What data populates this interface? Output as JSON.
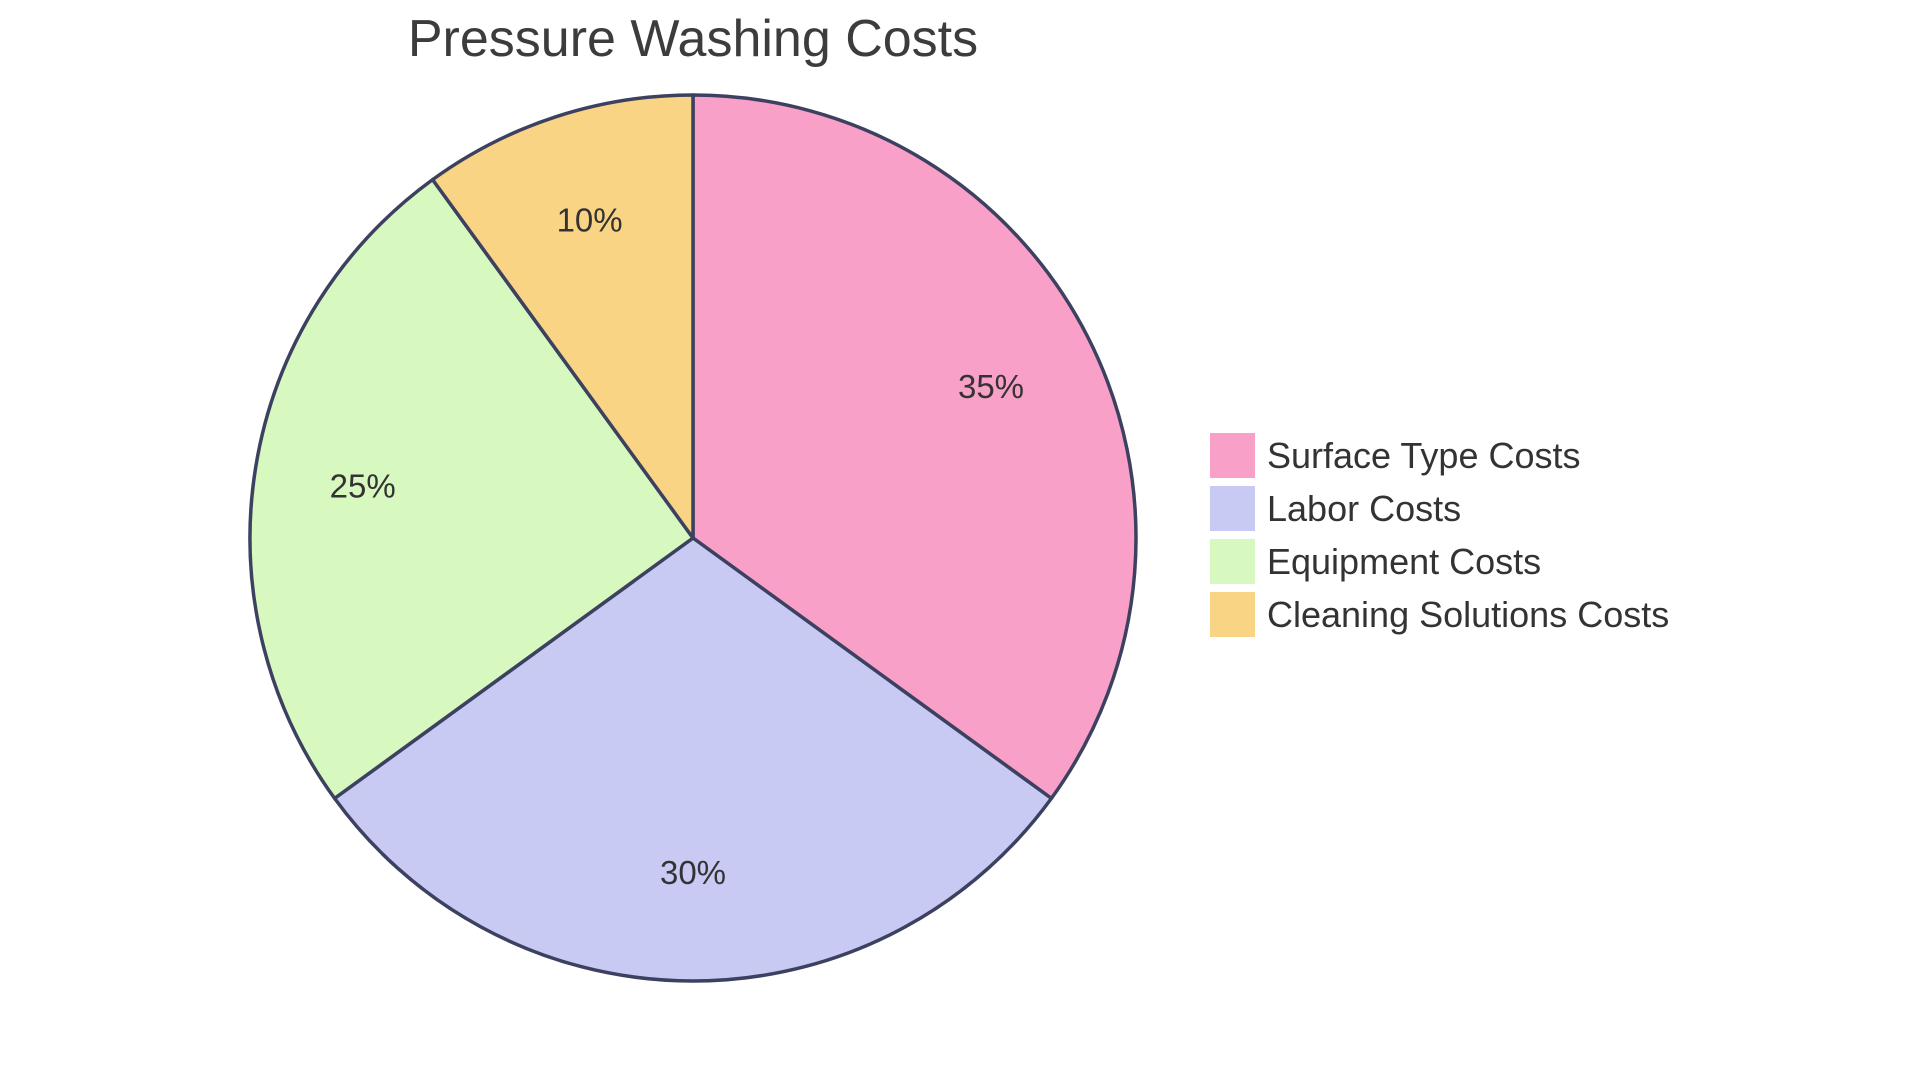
{
  "page": {
    "background_color": "#ffffff"
  },
  "chart_data": {
    "type": "pie",
    "title": "Pressure Washing Costs",
    "categories": [
      "Surface Type Costs",
      "Labor Costs",
      "Equipment Costs",
      "Cleaning Solutions Costs"
    ],
    "values": [
      35,
      30,
      25,
      10
    ],
    "slice_labels": [
      "35%",
      "30%",
      "25%",
      "10%"
    ],
    "colors": [
      "#F9A0C9",
      "#C8CAF4",
      "#D7F8BF",
      "#FAD485"
    ],
    "stroke_color": "#3C4160",
    "stroke_width": 3.5,
    "start_angle_deg": 0,
    "direction": "clockwise",
    "label_radius_ratio": 0.755,
    "title_color": "#3C3C3C",
    "label_color": "#333333",
    "legend_position": "right",
    "legend_entries": [
      "Surface Type Costs",
      "Labor Costs",
      "Equipment Costs",
      "Cleaning Solutions Costs"
    ]
  }
}
